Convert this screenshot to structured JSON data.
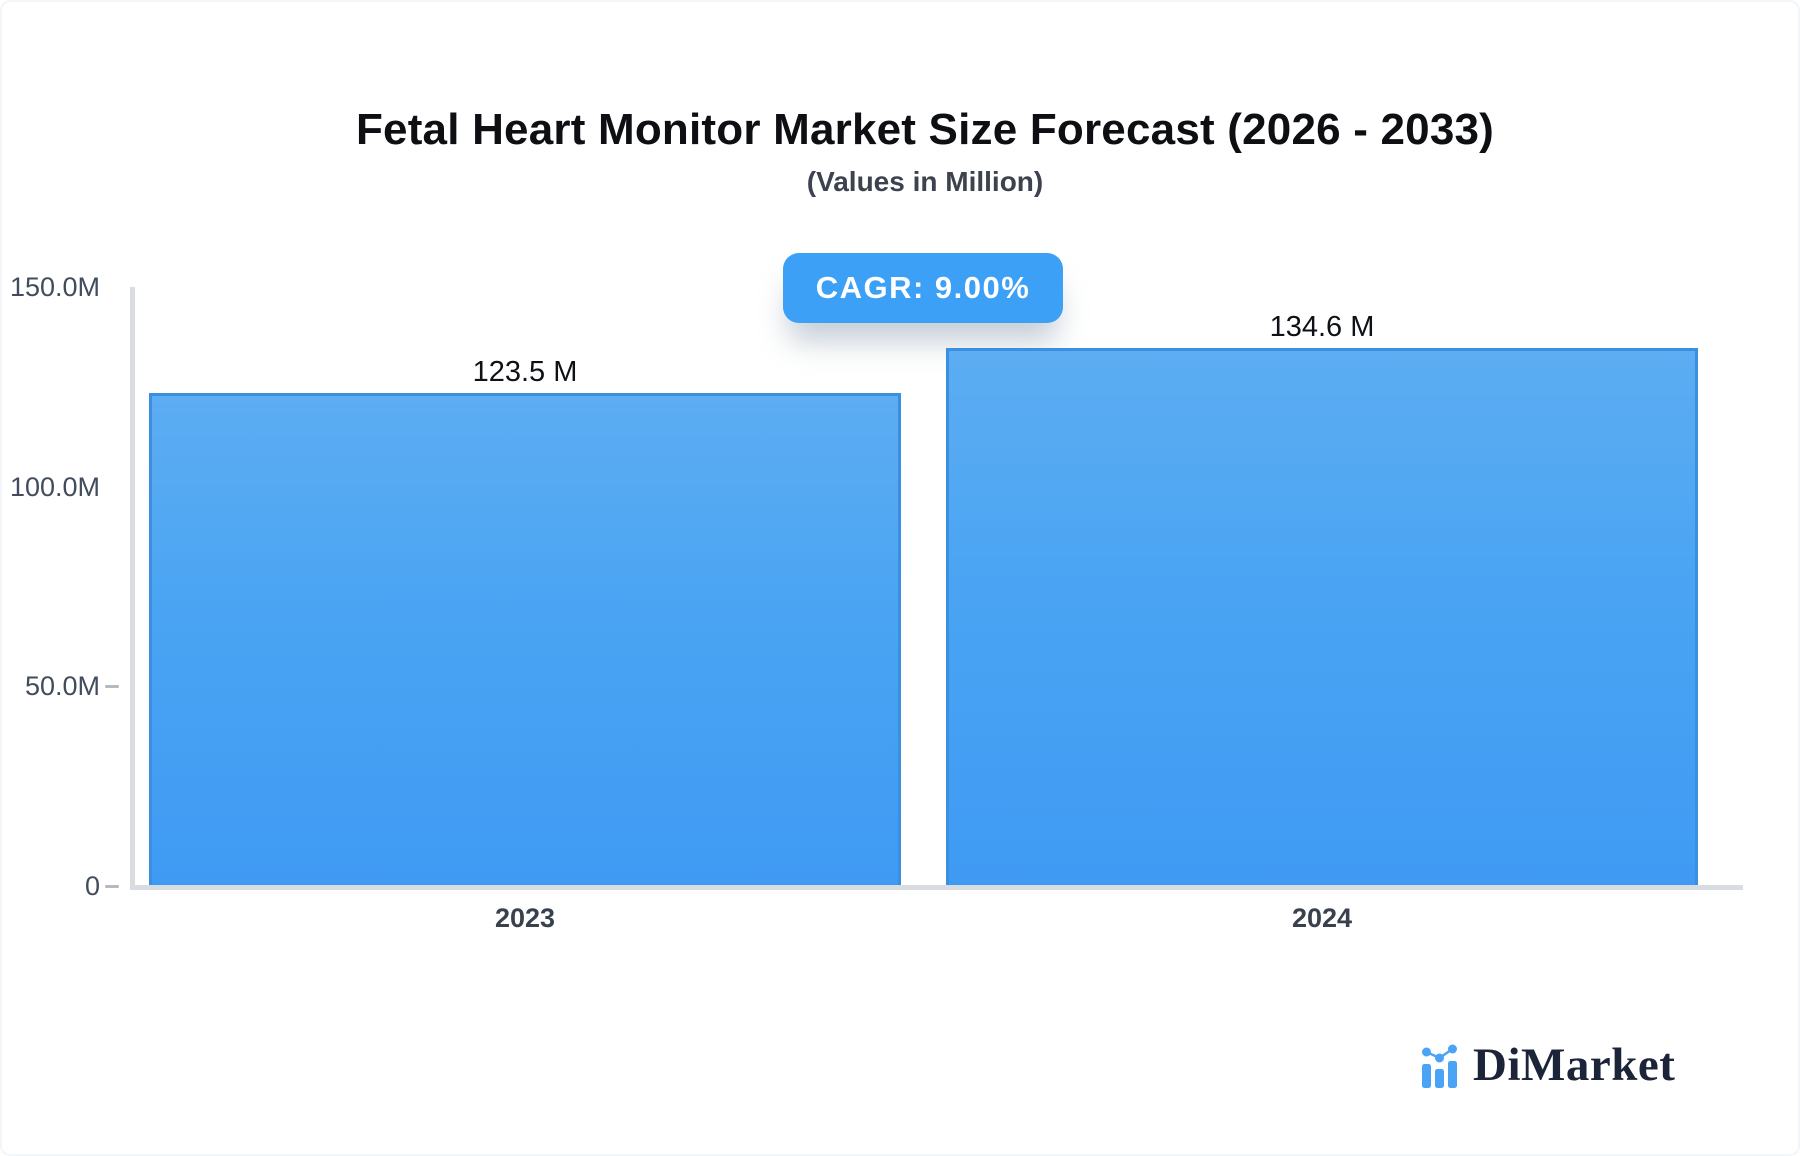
{
  "title": "Fetal Heart Monitor Market Size Forecast (2026 - 2033)",
  "subtitle": "(Values in Million)",
  "badge": {
    "label": "CAGR: 9.00%"
  },
  "brand": {
    "name": "DiMarket",
    "icon": "bar-chart-trend-icon"
  },
  "colors": {
    "bar_fill": "#4aa4f3",
    "bar_border": "#3a8fe0",
    "badge_bg": "#3ba0f6",
    "axis_line": "#d9dce1",
    "logo_blue": "#4aa3f5",
    "logo_navy": "#1b2438"
  },
  "chart_data": {
    "type": "bar",
    "categories": [
      "2023",
      "2024"
    ],
    "values": [
      123.5,
      134.6
    ],
    "value_labels": [
      "123.5 M",
      "134.6 M"
    ],
    "title": "Fetal Heart Monitor Market Size Forecast (2026 - 2033)",
    "subtitle": "(Values in Million)",
    "cagr": "9.00%",
    "xlabel": "",
    "ylabel": "",
    "unit": "Million",
    "ylim": [
      0,
      150
    ],
    "yticks": [
      "150.0M",
      "100.0M",
      "50.0M",
      "0"
    ],
    "grid": false,
    "legend": false
  }
}
